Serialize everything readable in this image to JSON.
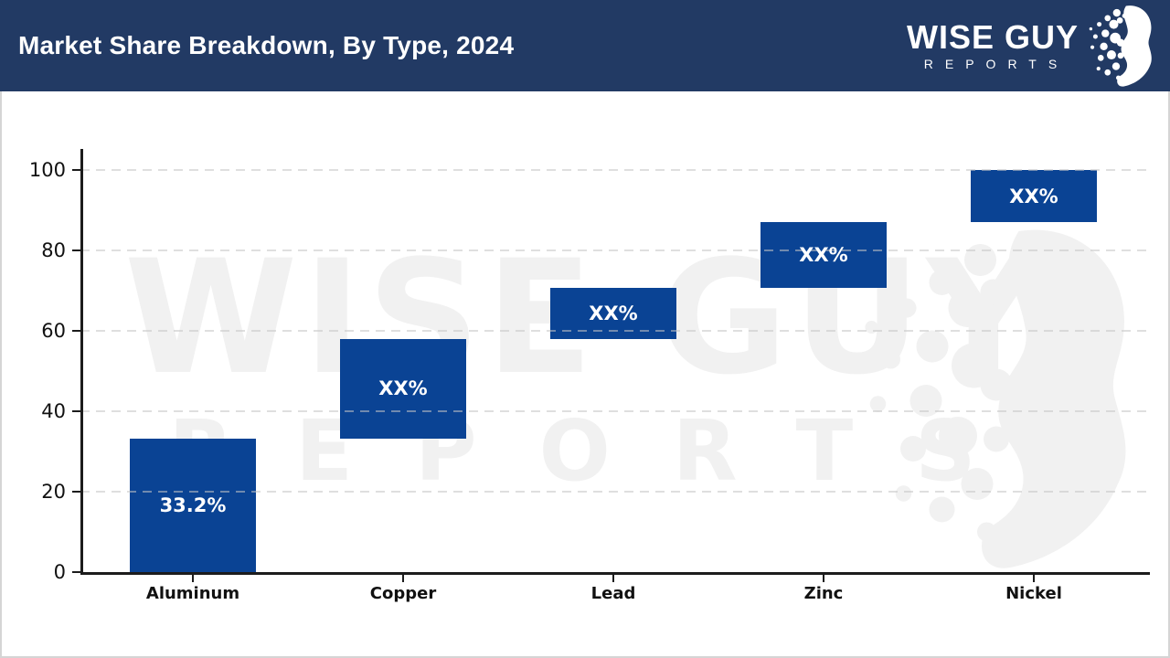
{
  "header": {
    "title": "Market Share Breakdown, By Type, 2024",
    "logo": {
      "line1": "WISE GUY",
      "line2": "REPORTS"
    }
  },
  "watermark": {
    "line1": "WISE GUY",
    "line2": "REPORTS"
  },
  "colors": {
    "header_background": "#223a64",
    "bar_fill": "#0a4394",
    "bar_label_text": "#ffffff",
    "axis": "#1c1c1c",
    "gridline": "#c5c5c5",
    "watermark": "#f1f1f1",
    "frame_border": "#d5d5d5"
  },
  "chart_data": {
    "type": "bar",
    "subtype": "waterfall-floating-bars",
    "title": "Market Share Breakdown, By Type, 2024",
    "categories": [
      "Aluminum",
      "Copper",
      "Lead",
      "Zinc",
      "Nickel"
    ],
    "segments": [
      {
        "category": "Aluminum",
        "start": 0,
        "end": 33.2,
        "size_pct": 33.2,
        "label": "33.2%"
      },
      {
        "category": "Copper",
        "start": 33.2,
        "end": 58.0,
        "size_pct": 24.8,
        "label": "XX%"
      },
      {
        "category": "Lead",
        "start": 58.0,
        "end": 70.7,
        "size_pct": 12.7,
        "label": "XX%"
      },
      {
        "category": "Zinc",
        "start": 70.7,
        "end": 87.0,
        "size_pct": 16.3,
        "label": "XX%"
      },
      {
        "category": "Nickel",
        "start": 87.0,
        "end": 100,
        "size_pct": 13.0,
        "label": "XX%"
      }
    ],
    "xlabel": "",
    "ylabel": "",
    "ylim": [
      0,
      100
    ],
    "yticks": [
      0,
      20,
      40,
      60,
      80,
      100
    ],
    "grid": "horizontal-dashed",
    "legend": "none"
  }
}
